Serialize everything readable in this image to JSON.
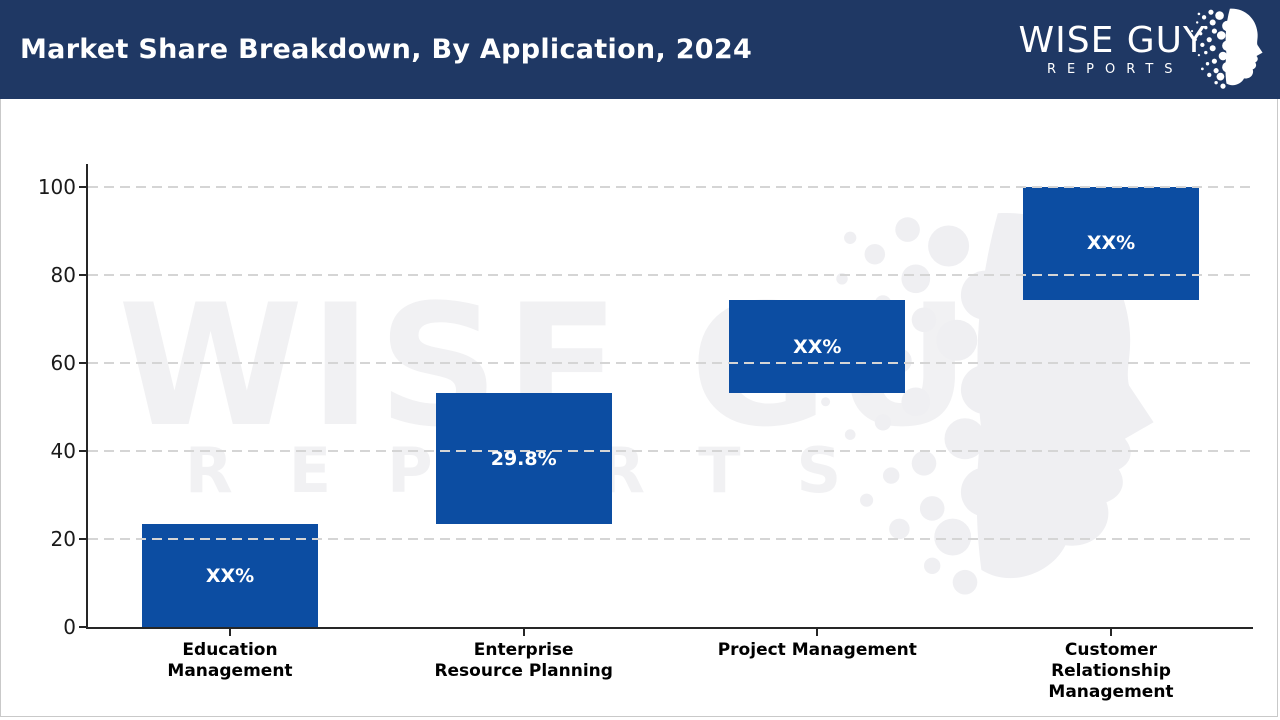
{
  "header": {
    "title": "Market Share Breakdown, By Application, 2024",
    "logo": {
      "name": "WISE GUY",
      "tagline": "REPORTS"
    }
  },
  "watermark": {
    "name": "WISE GUY",
    "tagline": "REPORTS"
  },
  "chart_data": {
    "type": "bar",
    "subtype": "waterfall-floating-bars",
    "title": "Market Share Breakdown, By Application, 2024",
    "categories": [
      "Education Management",
      "Enterprise Resource Planning",
      "Project Management",
      "Customer Relationship Management"
    ],
    "category_label_lines": [
      [
        "Education",
        "Management"
      ],
      [
        "Enterprise",
        "Resource Planning"
      ],
      [
        "Project Management"
      ],
      [
        "Customer",
        "Relationship",
        "Management"
      ]
    ],
    "segments": [
      {
        "category": "Education Management",
        "start": 0,
        "end": 23.3,
        "label": "XX%"
      },
      {
        "category": "Enterprise Resource Planning",
        "start": 23.3,
        "end": 53.1,
        "label": "29.8%"
      },
      {
        "category": "Project Management",
        "start": 53.1,
        "end": 74.2,
        "label": "XX%"
      },
      {
        "category": "Customer Relationship Management",
        "start": 74.2,
        "end": 100,
        "label": "XX%"
      }
    ],
    "xlabel": "",
    "ylabel": "",
    "ylim": [
      0,
      100
    ],
    "yticks": [
      0,
      20,
      40,
      60,
      80,
      100
    ],
    "grid": "horizontal-dashed-over-bars",
    "legend": "none",
    "colors": {
      "bar": "#0c4da2",
      "bar_label": "#ffffff",
      "grid": "#d5d5d5",
      "axis": "#262626",
      "header_bg": "#1f3864",
      "header_text": "#ffffff",
      "watermark": "#f1f1f3"
    }
  }
}
